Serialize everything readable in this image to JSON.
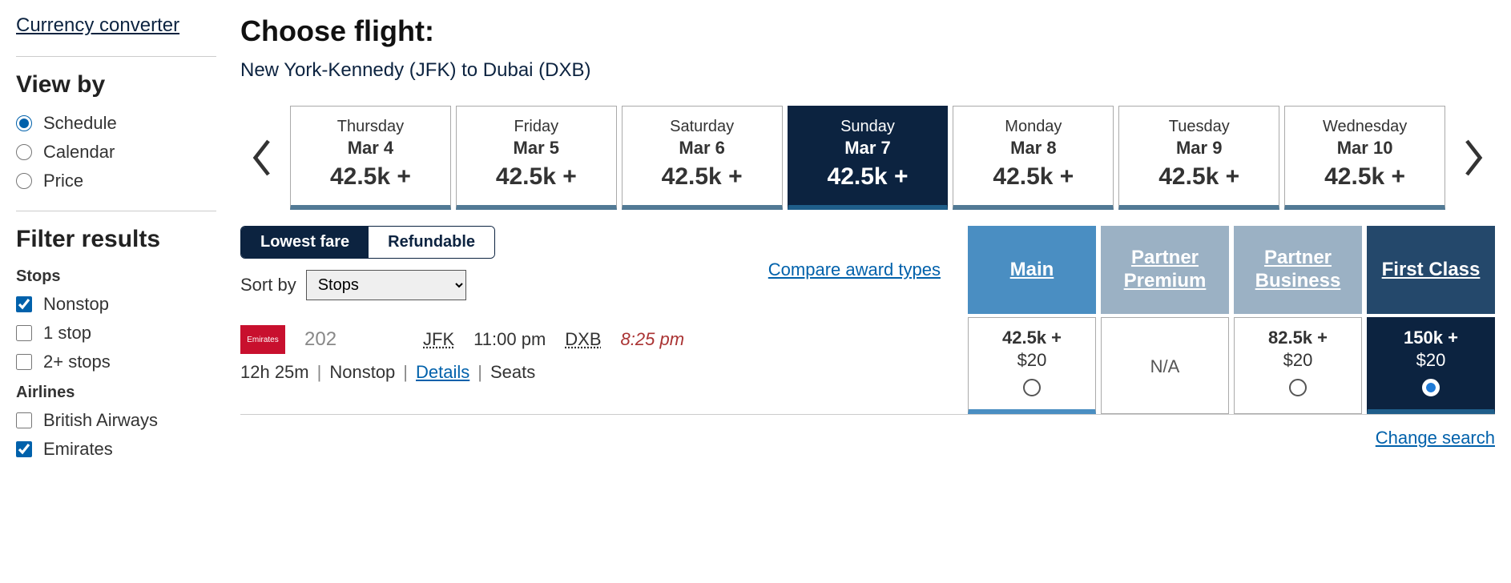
{
  "sidebar": {
    "currency_converter": "Currency converter",
    "view_by_title": "View by",
    "view_by_options": [
      "Schedule",
      "Calendar",
      "Price"
    ],
    "view_by_selected": 0,
    "filter_title": "Filter results",
    "stops_label": "Stops",
    "stops_options": [
      {
        "label": "Nonstop",
        "checked": true
      },
      {
        "label": "1 stop",
        "checked": false
      },
      {
        "label": "2+ stops",
        "checked": false
      }
    ],
    "airlines_label": "Airlines",
    "airlines_options": [
      {
        "label": "British Airways",
        "checked": false
      },
      {
        "label": "Emirates",
        "checked": true
      }
    ]
  },
  "header": {
    "title": "Choose flight:",
    "route": "New York-Kennedy (JFK) to Dubai (DXB)"
  },
  "dates": [
    {
      "day": "Thursday",
      "date": "Mar 4",
      "price": "42.5k +",
      "selected": false
    },
    {
      "day": "Friday",
      "date": "Mar 5",
      "price": "42.5k +",
      "selected": false
    },
    {
      "day": "Saturday",
      "date": "Mar 6",
      "price": "42.5k +",
      "selected": false
    },
    {
      "day": "Sunday",
      "date": "Mar 7",
      "price": "42.5k +",
      "selected": true
    },
    {
      "day": "Monday",
      "date": "Mar 8",
      "price": "42.5k +",
      "selected": false
    },
    {
      "day": "Tuesday",
      "date": "Mar 9",
      "price": "42.5k +",
      "selected": false
    },
    {
      "day": "Wednesday",
      "date": "Mar 10",
      "price": "42.5k +",
      "selected": false
    }
  ],
  "controls": {
    "fare_toggle": [
      "Lowest fare",
      "Refundable"
    ],
    "fare_toggle_active": 0,
    "sort_by_label": "Sort by",
    "sort_by_value": "Stops",
    "compare_label": "Compare award types"
  },
  "cabins": [
    {
      "label": "Main",
      "bg": "#4a8ec2"
    },
    {
      "label": "Partner Premium",
      "bg": "#9bb1c4"
    },
    {
      "label": "Partner Business",
      "bg": "#9bb1c4"
    },
    {
      "label": "First Class",
      "bg": "#24486b"
    }
  ],
  "flight": {
    "airline_code": "Emirates",
    "number": "202",
    "dep_airport": "JFK",
    "dep_time": "11:00 pm",
    "arr_airport": "DXB",
    "arr_time": "8:25 pm",
    "duration": "12h 25m",
    "stops": "Nonstop",
    "details_label": "Details",
    "seats_label": "Seats",
    "prices": [
      {
        "pts": "42.5k +",
        "money": "$20",
        "na": false,
        "selected": false,
        "accent": true
      },
      {
        "pts": "",
        "money": "N/A",
        "na": true,
        "selected": false
      },
      {
        "pts": "82.5k +",
        "money": "$20",
        "na": false,
        "selected": false
      },
      {
        "pts": "150k +",
        "money": "$20",
        "na": false,
        "selected": true
      }
    ]
  },
  "change_search_label": "Change search",
  "colors": {
    "navy": "#0c2340",
    "mid_blue": "#4a8ec2",
    "muted_blue": "#9bb1c4",
    "dark_blue": "#24486b",
    "link_blue": "#0061ab",
    "emirates_red": "#c8102e"
  }
}
